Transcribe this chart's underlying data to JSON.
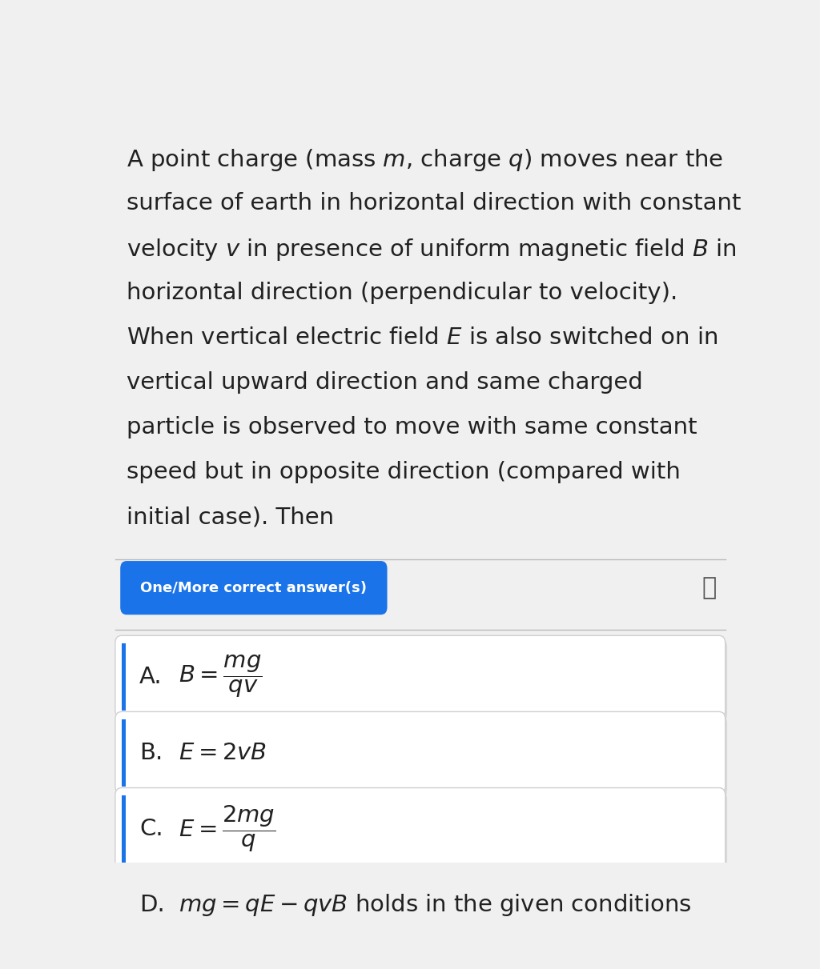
{
  "background_color": "#f0f0f0",
  "paragraph_lines": [
    "A point charge (mass $m$, charge $q$) moves near the",
    "surface of earth in horizontal direction with constant",
    "velocity $v$ in presence of uniform magnetic field $B$ in",
    "horizontal direction (perpendicular to velocity).",
    "When vertical electric field $E$ is also switched on in",
    "vertical upward direction and same charged",
    "particle is observed to move with same constant",
    "speed but in opposite direction (compared with",
    "initial case). Then"
  ],
  "badge_text": "One/More correct answer(s)",
  "badge_bg": "#1a73e8",
  "badge_text_color": "#ffffff",
  "options": [
    {
      "label": "A.",
      "formula": "$B = \\dfrac{mg}{qv}$"
    },
    {
      "label": "B.",
      "formula": "$E = 2vB$"
    },
    {
      "label": "C.",
      "formula": "$E = \\dfrac{2mg}{q}$"
    },
    {
      "label": "D.",
      "formula": "$mg = qE - qvB$ holds in the given conditions"
    }
  ],
  "option_bg": "#ffffff",
  "option_border": "#d0d0d0",
  "option_text_color": "#212121",
  "font_size_paragraph": 21,
  "font_size_option": 21,
  "font_size_badge": 13
}
